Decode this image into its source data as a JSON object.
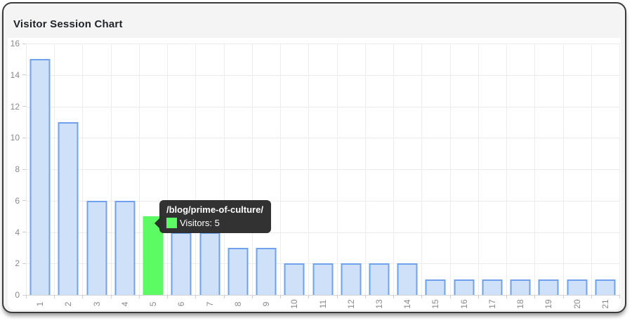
{
  "card": {
    "title": "Visitor Session Chart"
  },
  "chart_data": {
    "type": "bar",
    "title": "Visitor Session Chart",
    "categories": [
      "1",
      "2",
      "3",
      "4",
      "5",
      "6",
      "7",
      "8",
      "9",
      "10",
      "11",
      "12",
      "13",
      "14",
      "15",
      "16",
      "17",
      "18",
      "19",
      "20",
      "21"
    ],
    "values": [
      15,
      11,
      6,
      6,
      5,
      4,
      4,
      3,
      3,
      2,
      2,
      2,
      2,
      2,
      1,
      1,
      1,
      1,
      1,
      1,
      1
    ],
    "xlabel": "",
    "ylabel": "",
    "ylim": [
      0,
      16
    ],
    "y_ticks": [
      0,
      2,
      4,
      6,
      8,
      10,
      12,
      14,
      16
    ],
    "grid": true,
    "legend_position": "none",
    "bar_fill": "#cfe1f9",
    "bar_border": "#6fa1ec",
    "highlight_index": 4,
    "highlight_color": "#5cfa63",
    "tooltip": {
      "title": "/blog/prime-of-culture/",
      "text": "Visitors: 5",
      "value": 5,
      "swatch_color": "#5cfa63"
    }
  }
}
